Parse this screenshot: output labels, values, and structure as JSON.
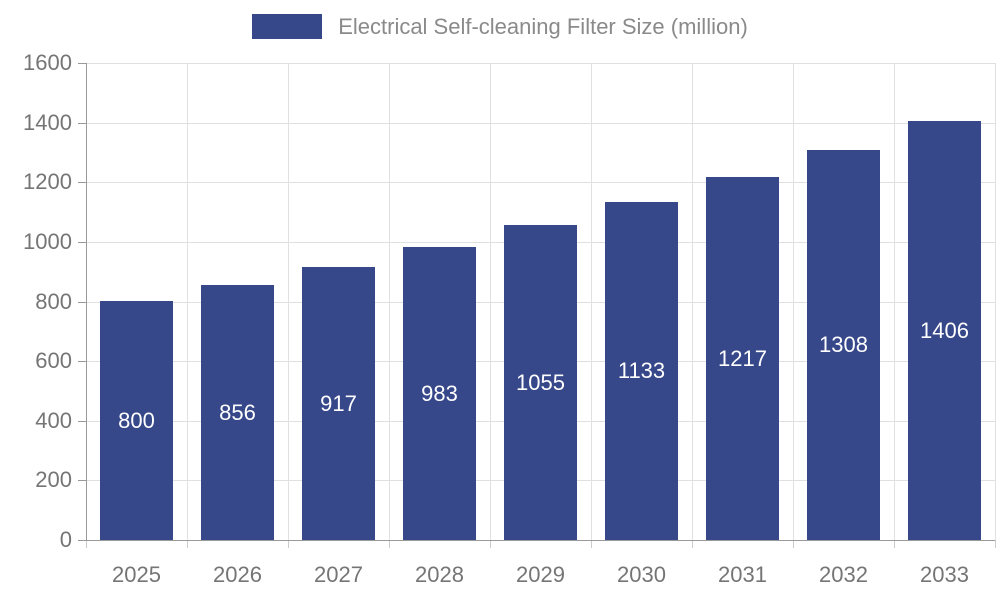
{
  "legend": {
    "label": "Electrical Self-cleaning Filter Size (million)"
  },
  "colors": {
    "bar": "#36478A",
    "axis_line": "#999999",
    "grid_line": "#e0e0e0",
    "x_tick": "#cccccc",
    "y_tick": "#999999",
    "axis_label_text": "#757575",
    "legend_text": "#8a8a8a",
    "value_label_text": "#ffffff",
    "background": "#ffffff"
  },
  "chart_data": {
    "type": "bar",
    "title": "Electrical Self-cleaning Filter Size (million)",
    "categories": [
      "2025",
      "2026",
      "2027",
      "2028",
      "2029",
      "2030",
      "2031",
      "2032",
      "2033"
    ],
    "values": [
      800,
      856,
      917,
      983,
      1055,
      1133,
      1217,
      1308,
      1406
    ],
    "series": [
      {
        "name": "Electrical Self-cleaning Filter Size (million)",
        "values": [
          800,
          856,
          917,
          983,
          1055,
          1133,
          1217,
          1308,
          1406
        ]
      }
    ],
    "xlabel": "",
    "ylabel": "",
    "ylim": [
      0,
      1600
    ],
    "yticks": [
      0,
      200,
      400,
      600,
      800,
      1000,
      1200,
      1400,
      1600
    ],
    "grid": true,
    "legend_position": "top-center",
    "value_labels": "inside-center",
    "value_label_color": "#ffffff",
    "bar_color": "#36478A"
  }
}
